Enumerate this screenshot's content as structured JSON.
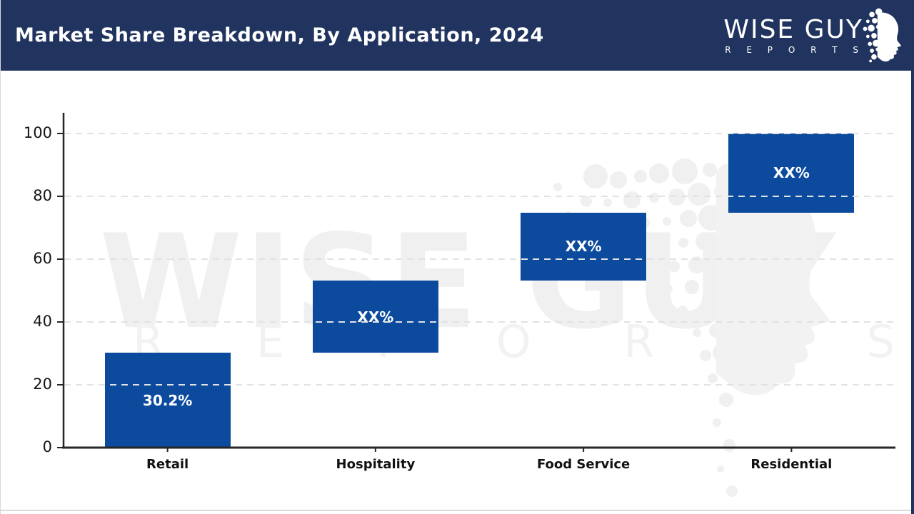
{
  "header": {
    "title": "Market Share Breakdown, By Application, 2024",
    "bg_color": "#20345f",
    "logo": {
      "line1": "WISE GUY",
      "line2": "R E P O R T S"
    }
  },
  "chart_data": {
    "type": "bar",
    "variant": "floating-waterfall",
    "title": "Market Share Breakdown, By Application, 2024",
    "categories": [
      "Retail",
      "Hospitality",
      "Food Service",
      "Residential"
    ],
    "series": [
      {
        "name": "Market share (%)",
        "segments": [
          {
            "category": "Retail",
            "start": 0,
            "end": 30.2,
            "label": "30.2%"
          },
          {
            "category": "Hospitality",
            "start": 30.2,
            "end": 53.2,
            "label": "XX%"
          },
          {
            "category": "Food Service",
            "start": 53.2,
            "end": 74.8,
            "label": "XX%"
          },
          {
            "category": "Residential",
            "start": 74.8,
            "end": 100,
            "label": "XX%"
          }
        ]
      }
    ],
    "yticks": [
      0,
      20,
      40,
      60,
      80,
      100
    ],
    "ylim": [
      0,
      105
    ],
    "xlabel": "",
    "ylabel": "",
    "grid": "horizontal-dashed",
    "legend": "none",
    "bar_color": "#0c4a9d",
    "bar_label_color": "#ffffff",
    "grid_color": "#e2e2e2",
    "axis_color": "#262626",
    "watermark": {
      "line1": "WISE GUY",
      "line2": "R E P O R T S"
    }
  }
}
